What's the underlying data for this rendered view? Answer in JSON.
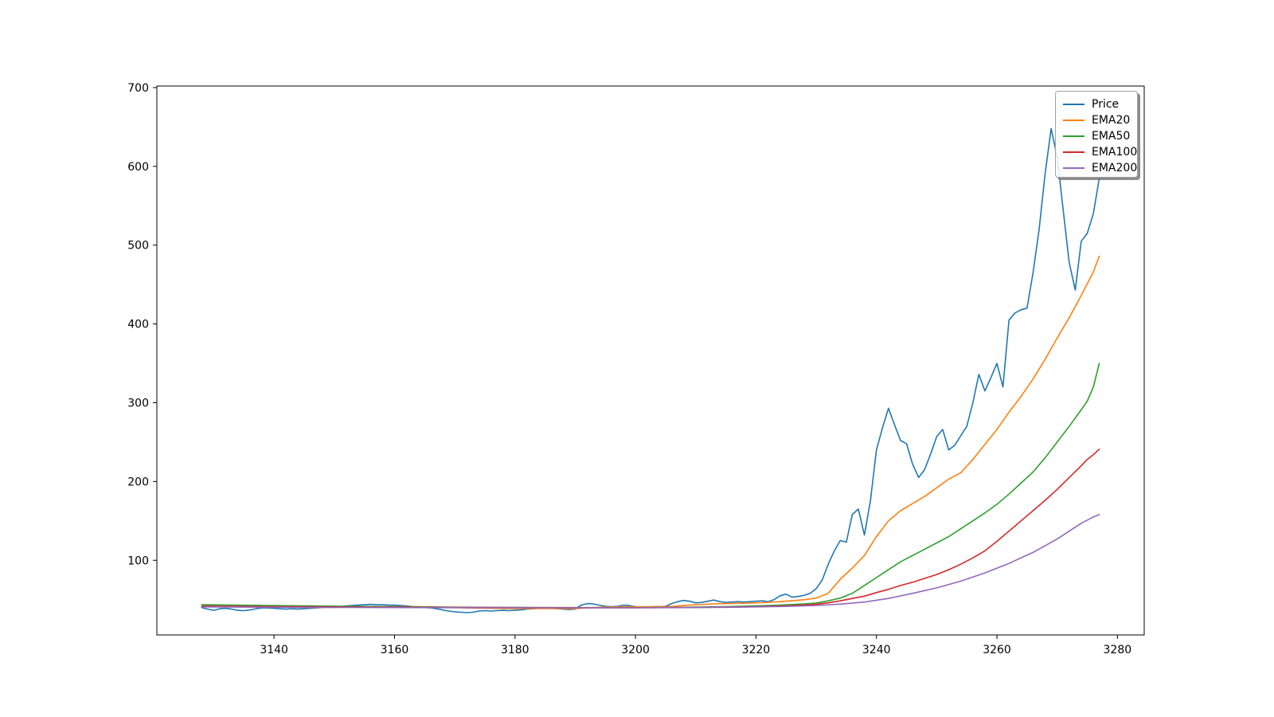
{
  "figure": {
    "background_color": "#ffffff",
    "axes_line_color": "#000000",
    "tick_label_color": "#000000"
  },
  "legend": {
    "position": "upper right",
    "entries": [
      {
        "label": "Price",
        "color": "#1f77b4"
      },
      {
        "label": "EMA20",
        "color": "#ff7f0e"
      },
      {
        "label": "EMA50",
        "color": "#2ca02c"
      },
      {
        "label": "EMA100",
        "color": "#d62728"
      },
      {
        "label": "EMA200",
        "color": "#9467bd"
      }
    ]
  },
  "chart_data": {
    "type": "line",
    "title": "",
    "xlabel": "",
    "ylabel": "",
    "grid": false,
    "legend_position": "upper right",
    "x_ticks": [
      3140,
      3160,
      3180,
      3200,
      3220,
      3240,
      3260,
      3280
    ],
    "y_ticks": [
      100,
      200,
      300,
      400,
      500,
      600,
      700
    ],
    "xlim": [
      3120.55,
      3284.45
    ],
    "ylim": [
      5.2,
      702.0
    ],
    "axes_rect": [
      197,
      108,
      1437,
      797
    ],
    "series": [
      {
        "name": "Price",
        "color": "#1f77b4",
        "x_start": 3128,
        "x_step": 1,
        "values": [
          40,
          38,
          36.5,
          38.5,
          39,
          38,
          36.5,
          36,
          37,
          38.5,
          39.5,
          39.5,
          39,
          38.5,
          38,
          38.5,
          38,
          38.5,
          39,
          39.5,
          40,
          40.5,
          40.5,
          41,
          42,
          42.5,
          43,
          43.5,
          44,
          43.5,
          43.5,
          43,
          43,
          42.5,
          42,
          41,
          40.5,
          40,
          39.5,
          38.5,
          37,
          35.5,
          34.5,
          34,
          33.5,
          34,
          35.5,
          36,
          35.5,
          36,
          36.5,
          36,
          36.5,
          37,
          38,
          38.5,
          39,
          39.5,
          39,
          38.5,
          38,
          37.5,
          38,
          43,
          45,
          44.5,
          43,
          41.5,
          41,
          41.5,
          43,
          42.5,
          41,
          40.5,
          40.5,
          41,
          41,
          41.5,
          45,
          47.5,
          49,
          48,
          46,
          46.5,
          48,
          49.5,
          47.5,
          46.5,
          47,
          47.5,
          47,
          47.5,
          48,
          48.5,
          47.5,
          50,
          55,
          57,
          53,
          54,
          55.5,
          58,
          64,
          75,
          95,
          112,
          125,
          123,
          158,
          165,
          132,
          175,
          240,
          268,
          293,
          272,
          252,
          248,
          222,
          205,
          215,
          235,
          257,
          266,
          240,
          246,
          258,
          270,
          300,
          336,
          315,
          332,
          350,
          320,
          405,
          414,
          418,
          420,
          465,
          520,
          590,
          648,
          612,
          545,
          478,
          443,
          505,
          515,
          540,
          585
        ]
      },
      {
        "name": "EMA20",
        "color": "#ff7f0e",
        "points": [
          [
            3128,
            41.5
          ],
          [
            3134,
            40.9
          ],
          [
            3140,
            40.5
          ],
          [
            3146,
            40.1
          ],
          [
            3150,
            40.2
          ],
          [
            3156,
            40.9
          ],
          [
            3160,
            41.2
          ],
          [
            3164,
            41.0
          ],
          [
            3168,
            40.4
          ],
          [
            3172,
            39.5
          ],
          [
            3176,
            39.0
          ],
          [
            3180,
            38.7
          ],
          [
            3185,
            38.8
          ],
          [
            3190,
            38.7
          ],
          [
            3192,
            39.7
          ],
          [
            3195,
            40.5
          ],
          [
            3199,
            41.0
          ],
          [
            3203,
            40.9
          ],
          [
            3206,
            41.3
          ],
          [
            3209,
            43.1
          ],
          [
            3213,
            44.6
          ],
          [
            3217,
            45.4
          ],
          [
            3221,
            46.2
          ],
          [
            3224,
            47.5
          ],
          [
            3228,
            49.9
          ],
          [
            3230,
            52
          ],
          [
            3232,
            58
          ],
          [
            3234,
            76
          ],
          [
            3236,
            90
          ],
          [
            3238,
            106
          ],
          [
            3240,
            130
          ],
          [
            3242,
            150
          ],
          [
            3244,
            163
          ],
          [
            3246,
            172
          ],
          [
            3248,
            181
          ],
          [
            3250,
            192
          ],
          [
            3252,
            203
          ],
          [
            3254,
            211
          ],
          [
            3256,
            228
          ],
          [
            3258,
            247
          ],
          [
            3260,
            266
          ],
          [
            3262,
            288
          ],
          [
            3264,
            308
          ],
          [
            3266,
            330
          ],
          [
            3268,
            355
          ],
          [
            3270,
            382
          ],
          [
            3272,
            408
          ],
          [
            3274,
            436
          ],
          [
            3276,
            466
          ],
          [
            3277,
            486
          ]
        ]
      },
      {
        "name": "EMA50",
        "color": "#2ca02c",
        "points": [
          [
            3128,
            43.5
          ],
          [
            3136,
            42.8
          ],
          [
            3144,
            42.2
          ],
          [
            3152,
            41.6
          ],
          [
            3160,
            41.1
          ],
          [
            3168,
            40.6
          ],
          [
            3176,
            40.2
          ],
          [
            3184,
            40.0
          ],
          [
            3192,
            39.9
          ],
          [
            3200,
            39.9
          ],
          [
            3205,
            40.1
          ],
          [
            3210,
            40.5
          ],
          [
            3215,
            41.1
          ],
          [
            3220,
            42.0
          ],
          [
            3224,
            43.0
          ],
          [
            3228,
            44.5
          ],
          [
            3230,
            45.8
          ],
          [
            3232,
            48.5
          ],
          [
            3234,
            52
          ],
          [
            3236,
            58
          ],
          [
            3238,
            68
          ],
          [
            3240,
            78
          ],
          [
            3242,
            88
          ],
          [
            3244,
            98
          ],
          [
            3246,
            106
          ],
          [
            3248,
            114
          ],
          [
            3250,
            122
          ],
          [
            3252,
            130
          ],
          [
            3254,
            140
          ],
          [
            3256,
            150
          ],
          [
            3258,
            160
          ],
          [
            3260,
            171
          ],
          [
            3262,
            184
          ],
          [
            3264,
            198
          ],
          [
            3266,
            212
          ],
          [
            3268,
            230
          ],
          [
            3270,
            250
          ],
          [
            3272,
            270
          ],
          [
            3274,
            291
          ],
          [
            3275,
            302
          ],
          [
            3276,
            320
          ],
          [
            3277,
            350
          ]
        ]
      },
      {
        "name": "EMA100",
        "color": "#d62728",
        "points": [
          [
            3128,
            41.8
          ],
          [
            3140,
            41.2
          ],
          [
            3152,
            40.7
          ],
          [
            3164,
            40.3
          ],
          [
            3176,
            40.0
          ],
          [
            3188,
            39.8
          ],
          [
            3200,
            39.8
          ],
          [
            3208,
            40.0
          ],
          [
            3215,
            40.5
          ],
          [
            3220,
            41.0
          ],
          [
            3225,
            42.0
          ],
          [
            3230,
            44.0
          ],
          [
            3232,
            46.0
          ],
          [
            3234,
            48.5
          ],
          [
            3236,
            51.5
          ],
          [
            3238,
            54.5
          ],
          [
            3240,
            59
          ],
          [
            3242,
            63
          ],
          [
            3244,
            68
          ],
          [
            3246,
            72
          ],
          [
            3248,
            77
          ],
          [
            3250,
            82
          ],
          [
            3252,
            88
          ],
          [
            3254,
            95
          ],
          [
            3256,
            103
          ],
          [
            3258,
            112
          ],
          [
            3260,
            124
          ],
          [
            3262,
            137
          ],
          [
            3264,
            150
          ],
          [
            3266,
            163
          ],
          [
            3268,
            176
          ],
          [
            3270,
            190
          ],
          [
            3272,
            205
          ],
          [
            3274,
            220
          ],
          [
            3275,
            228
          ],
          [
            3276,
            234
          ],
          [
            3277,
            241
          ]
        ]
      },
      {
        "name": "EMA200",
        "color": "#9467bd",
        "points": [
          [
            3128,
            40.8
          ],
          [
            3140,
            40.4
          ],
          [
            3152,
            40.1
          ],
          [
            3164,
            39.9
          ],
          [
            3176,
            39.7
          ],
          [
            3188,
            39.6
          ],
          [
            3200,
            39.7
          ],
          [
            3208,
            39.9
          ],
          [
            3215,
            40.3
          ],
          [
            3220,
            40.8
          ],
          [
            3225,
            41.4
          ],
          [
            3230,
            42.6
          ],
          [
            3234,
            44.3
          ],
          [
            3238,
            47.0
          ],
          [
            3242,
            51.5
          ],
          [
            3246,
            58.0
          ],
          [
            3250,
            65.0
          ],
          [
            3254,
            73.5
          ],
          [
            3258,
            84.0
          ],
          [
            3262,
            96.0
          ],
          [
            3266,
            110
          ],
          [
            3270,
            127
          ],
          [
            3272,
            137
          ],
          [
            3274,
            147
          ],
          [
            3276,
            155
          ],
          [
            3277,
            158
          ]
        ]
      }
    ]
  }
}
